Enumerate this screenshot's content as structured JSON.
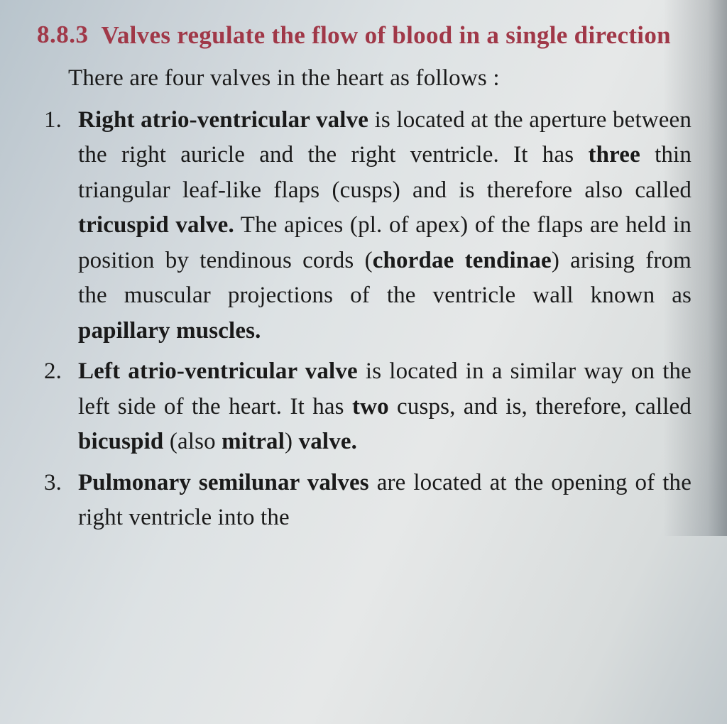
{
  "typography": {
    "font_family": "Georgia, 'Times New Roman', serif",
    "heading_color": "#a03848",
    "body_color": "#1a1a1a",
    "heading_fontsize_pt": 26,
    "body_fontsize_pt": 25,
    "heading_weight": 700,
    "bold_weight": 700,
    "line_height_body": 1.5
  },
  "background": {
    "gradient_colors": [
      "#b8c4cc",
      "#c8d0d6",
      "#dde2e4",
      "#e6e8e8",
      "#d8dcdc",
      "#c0c8cc"
    ],
    "gradient_angle_deg": 115,
    "right_shadow_color": "rgba(20,30,40,0.35)"
  },
  "section": {
    "number": "8.8.3",
    "title": "Valves regulate the flow of blood in a single direction"
  },
  "intro": "There are four valves in the heart as follows :",
  "items": [
    {
      "lead_bold": "Right atrio-ventricular valve",
      "t1": " is located at the aperture between the right auricle and the right ventricle. It has ",
      "b1": "three",
      "t2": " thin triangular leaf-like flaps (cusps) and is therefore also called ",
      "b2": "tricuspid valve.",
      "t3": " The apices (pl. of apex) of the flaps are held in position by tendinous cords (",
      "b3": "chordae tendinae",
      "t4": ") arising from the muscular projections of the ventricle wall known as ",
      "b4": "papillary muscles.",
      "t5": ""
    },
    {
      "lead_bold": "Left atrio-ventricular valve",
      "t1": " is located in a similar way on the left side of the heart. It has ",
      "b1": "two",
      "t2": " cusps, and is, therefore, called ",
      "b2": "bicuspid",
      "t3": " (also ",
      "b3": "mitral",
      "t4": ") ",
      "b4": "valve.",
      "t5": ""
    },
    {
      "lead_bold": "Pulmonary semilunar valves",
      "t1": " are located at the opening of the right ventricle into the",
      "b1": "",
      "t2": "",
      "b2": "",
      "t3": "",
      "b3": "",
      "t4": "",
      "b4": "",
      "t5": ""
    }
  ]
}
